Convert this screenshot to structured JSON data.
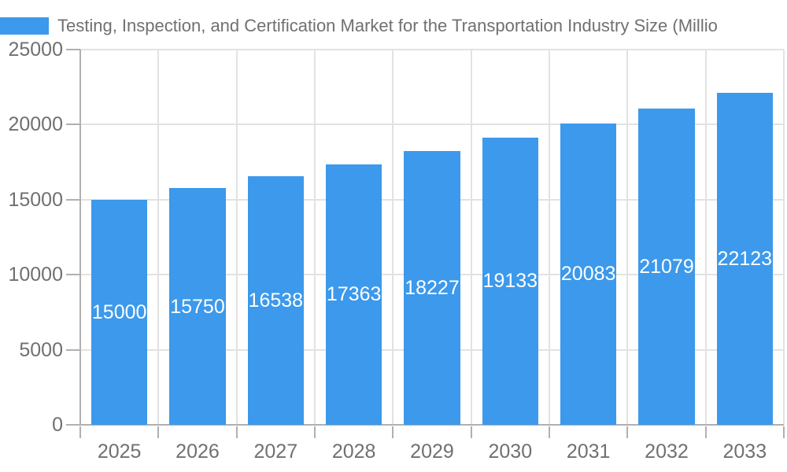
{
  "legend": {
    "label": "Testing, Inspection, and Certification Market for the Transportation Industry Size (Millio",
    "swatch_color": "#3c99eb"
  },
  "chart_data": {
    "type": "bar",
    "title": "Testing, Inspection, and Certification Market for the Transportation Industry Size (Millio",
    "categories": [
      "2025",
      "2026",
      "2027",
      "2028",
      "2029",
      "2030",
      "2031",
      "2032",
      "2033"
    ],
    "values": [
      15000,
      15750,
      16538,
      17363,
      18227,
      19133,
      20083,
      21079,
      22123
    ],
    "series": [
      {
        "name": "Testing, Inspection, and Certification Market for the Transportation Industry Size (Millio",
        "values": [
          15000,
          15750,
          16538,
          17363,
          18227,
          19133,
          20083,
          21079,
          22123
        ]
      }
    ],
    "xlabel": "",
    "ylabel": "",
    "ylim": [
      0,
      25000
    ],
    "yticks": [
      0,
      5000,
      10000,
      15000,
      20000,
      25000
    ],
    "ytick_labels": [
      "0",
      "5000",
      "10000",
      "15000",
      "20000",
      "25000"
    ],
    "grid": true,
    "legend_position": "top",
    "bar_color": "#3c99eb",
    "data_label_color": "#ffffff",
    "axis_text_color": "#707070",
    "data_labels_visible": true
  }
}
